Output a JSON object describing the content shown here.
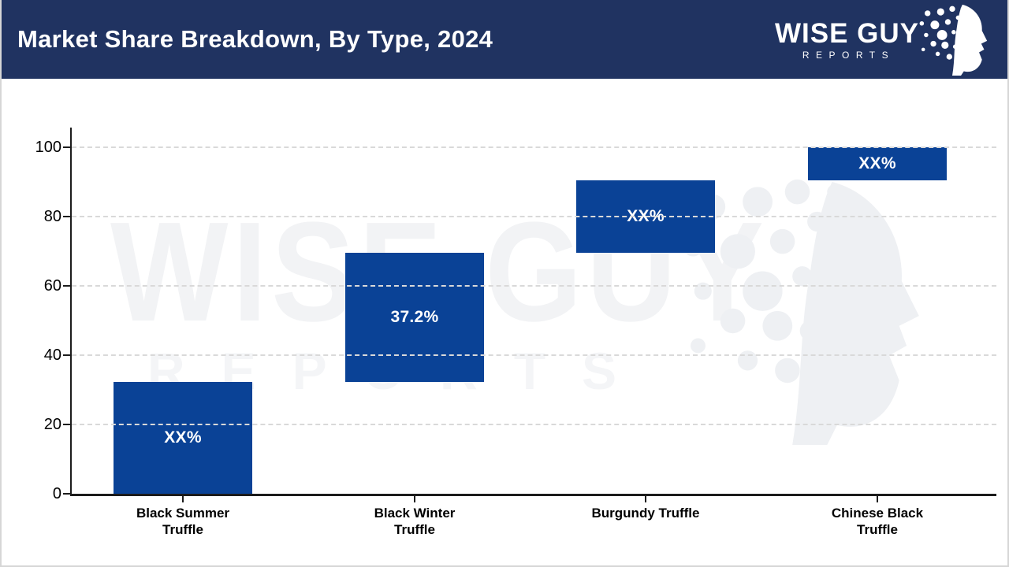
{
  "header": {
    "title": "Market Share Breakdown, By Type, 2024",
    "bg_color": "#203361",
    "logo": {
      "wordmark": "WISE GUY",
      "subtitle": "REPORTS"
    }
  },
  "watermark": {
    "wordmark": "WISE GUY",
    "subtitle": "REPORTS"
  },
  "chart_data": {
    "type": "bar",
    "variant": "waterfall",
    "title": "Market Share Breakdown, By Type, 2024",
    "xlabel": "",
    "ylabel": "",
    "ylim": [
      0,
      105
    ],
    "yticks": [
      0,
      20,
      40,
      60,
      80,
      100
    ],
    "grid": "horizontal-dashed",
    "grid_color": "#d9d9d9",
    "bar_color": "#0a4296",
    "categories": [
      "Black Summer Truffle",
      "Black Winter Truffle",
      "Burgundy Truffle",
      "Chinese Black Truffle"
    ],
    "segments": [
      {
        "category": "Black Summer Truffle",
        "label_lines": [
          "Black Summer",
          "Truffle"
        ],
        "start": 0,
        "end": 32.3,
        "value_label": "XX%"
      },
      {
        "category": "Black Winter Truffle",
        "label_lines": [
          "Black Winter",
          "Truffle"
        ],
        "start": 32.3,
        "end": 69.5,
        "value_label": "37.2%"
      },
      {
        "category": "Burgundy Truffle",
        "label_lines": [
          "Burgundy Truffle"
        ],
        "start": 69.5,
        "end": 90.5,
        "value_label": "XX%"
      },
      {
        "category": "Chinese Black Truffle",
        "label_lines": [
          "Chinese Black",
          "Truffle"
        ],
        "start": 90.5,
        "end": 100,
        "value_label": "XX%"
      }
    ]
  }
}
